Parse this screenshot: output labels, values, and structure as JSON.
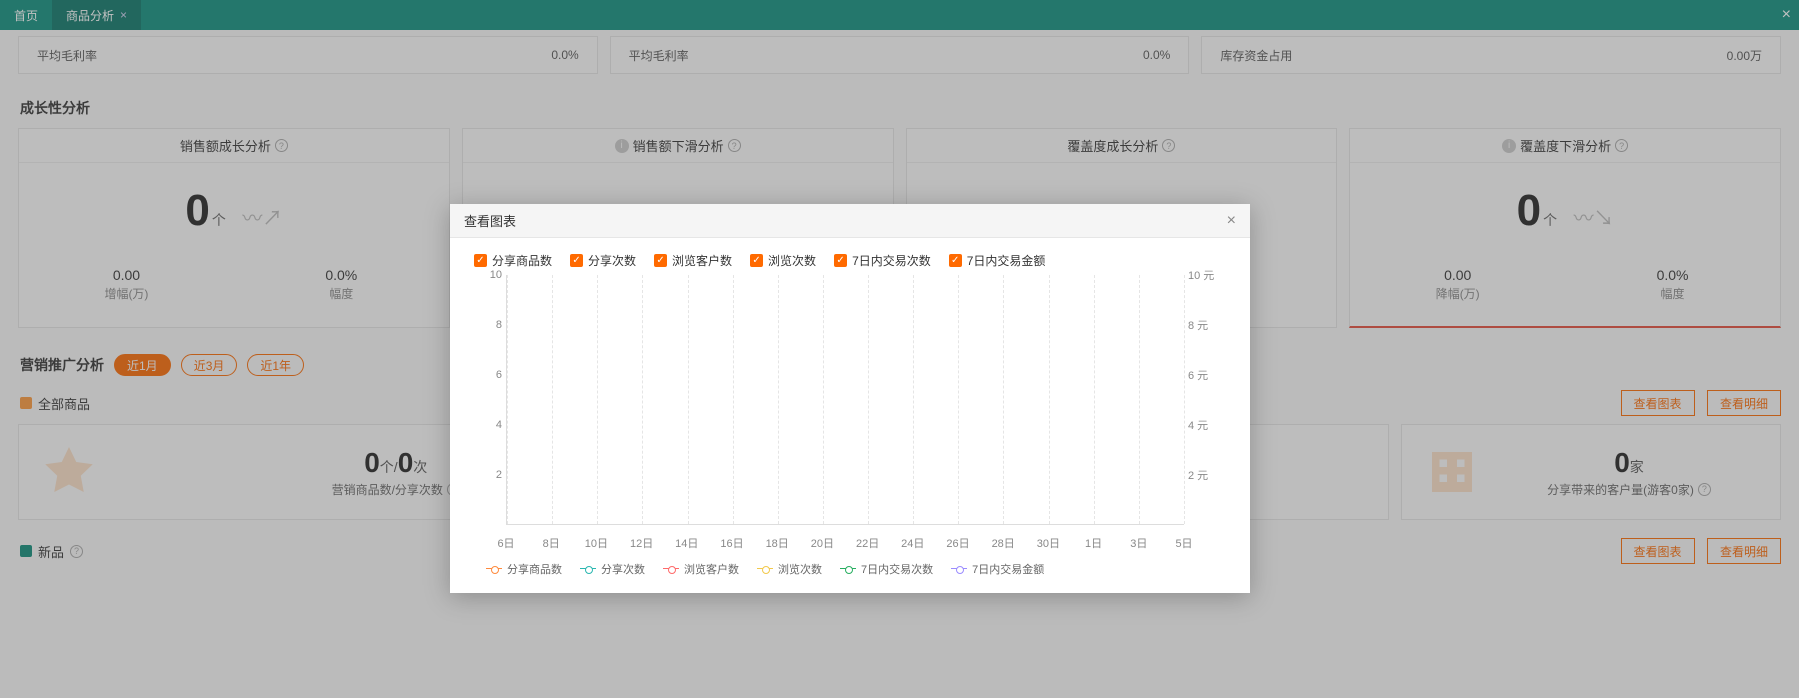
{
  "colors": {
    "brand": "#0d8d7b",
    "accent": "#ff6a00",
    "danger": "#e74c3c"
  },
  "tabs": {
    "items": [
      {
        "label": "首页",
        "active": false
      },
      {
        "label": "商品分析",
        "active": true
      }
    ]
  },
  "metrics_row": [
    {
      "label": "平均毛利率",
      "value": "0.0%"
    },
    {
      "label": "平均毛利率",
      "value": "0.0%"
    },
    {
      "label": "库存资金占用",
      "value": "0.00万"
    }
  ],
  "growth": {
    "title": "成长性分析",
    "cards": [
      {
        "title": "销售额成长分析",
        "big": "0",
        "unit": "个",
        "trend": "up",
        "subs": [
          {
            "v": "0.00",
            "l": "增幅(万)"
          },
          {
            "v": "0.0%",
            "l": "幅度"
          }
        ]
      },
      {
        "title": "销售额下滑分析",
        "has_info_left": true
      },
      {
        "title": "覆盖度成长分析"
      },
      {
        "title": "覆盖度下滑分析",
        "has_info_left": true,
        "big": "0",
        "unit": "个",
        "trend": "down",
        "red": true,
        "subs": [
          {
            "v": "0.00",
            "l": "降幅(万)"
          },
          {
            "v": "0.0%",
            "l": "幅度"
          }
        ]
      }
    ]
  },
  "promo": {
    "title": "营销推广分析",
    "ranges": [
      {
        "label": "近1月",
        "active": true
      },
      {
        "label": "近3月",
        "active": false
      },
      {
        "label": "近1年",
        "active": false
      }
    ],
    "buttons": {
      "chart": "查看图表",
      "detail": "查看明细"
    },
    "all_goods": {
      "label": "全部商品",
      "left": {
        "big": "0",
        "unit1": "个/",
        "big2": "0",
        "unit2": "次",
        "sub": "营销商品数/分享次数"
      },
      "right": {
        "big": "0",
        "unit": "家",
        "sub": "分享带来的客户量(游客0家)"
      }
    },
    "new_goods": {
      "label": "新品"
    }
  },
  "modal": {
    "title": "查看图表",
    "checks": [
      {
        "label": "分享商品数"
      },
      {
        "label": "分享次数"
      },
      {
        "label": "浏览客户数"
      },
      {
        "label": "浏览次数"
      },
      {
        "label": "7日内交易次数"
      },
      {
        "label": "7日内交易金额"
      }
    ],
    "chart": {
      "type": "line",
      "y_left": {
        "ticks": [
          10,
          8,
          6,
          4,
          2
        ],
        "min": 0,
        "max": 10
      },
      "y_right": {
        "ticks": [
          "10 元",
          "8 元",
          "6 元",
          "4 元",
          "2 元"
        ],
        "min": 0,
        "max": 10
      },
      "x_labels": [
        "6日",
        "8日",
        "10日",
        "12日",
        "14日",
        "16日",
        "18日",
        "20日",
        "22日",
        "24日",
        "26日",
        "28日",
        "30日",
        "1日",
        "3日",
        "5日"
      ],
      "grid_color": "#e5e5e5",
      "series": [
        {
          "name": "分享商品数",
          "color": "#ff8a3d"
        },
        {
          "name": "分享次数",
          "color": "#2ab7b0"
        },
        {
          "name": "浏览客户数",
          "color": "#ff6a6a"
        },
        {
          "name": "浏览次数",
          "color": "#f2c94c"
        },
        {
          "name": "7日内交易次数",
          "color": "#27ae60"
        },
        {
          "name": "7日内交易金额",
          "color": "#9b8cff"
        }
      ]
    }
  }
}
